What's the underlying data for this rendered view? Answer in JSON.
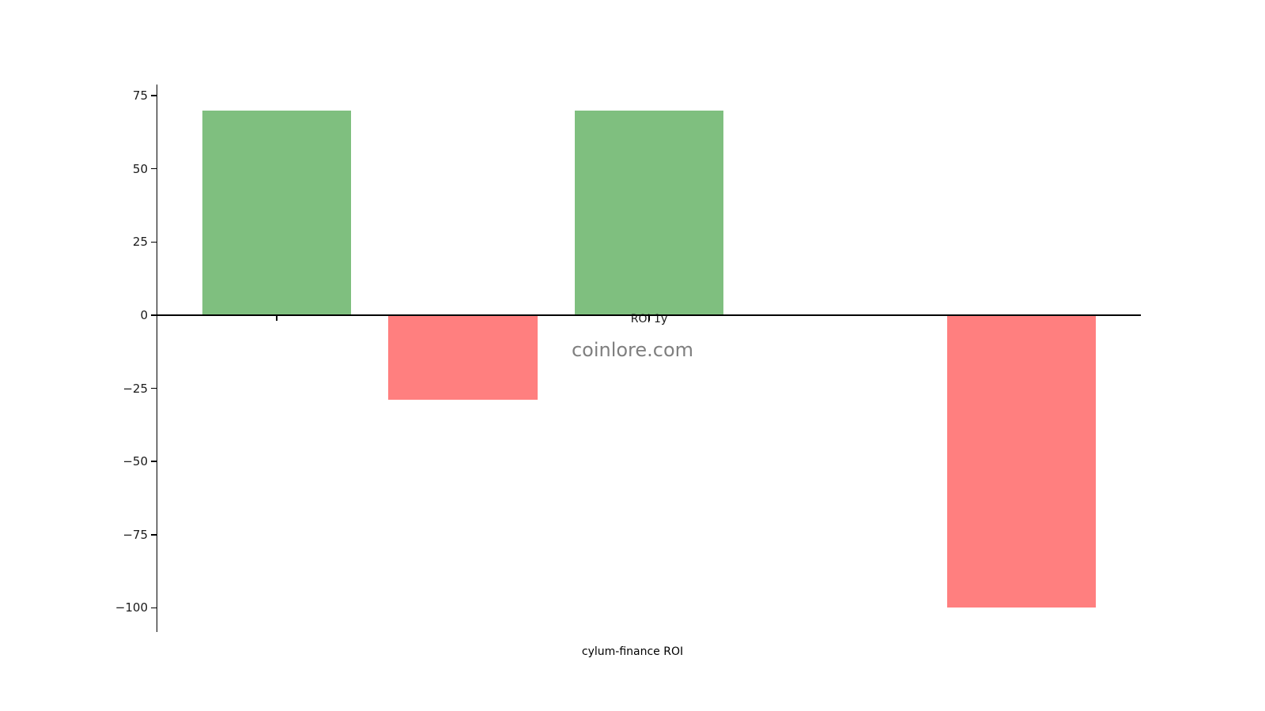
{
  "page": {
    "background": "#ffffff"
  },
  "chart_data": {
    "type": "bar",
    "title": "cylum-finance ROI",
    "watermark": "coinlore.com",
    "bars": [
      {
        "position": 0,
        "value": 70,
        "color": "#7fbf7f"
      },
      {
        "position": 1,
        "value": -29,
        "color": "#ff7f7f"
      },
      {
        "position": 2,
        "value": 70,
        "color": "#7fbf7f"
      },
      {
        "position": 4,
        "value": -100,
        "color": "#ff7f7f"
      }
    ],
    "bar_width": 0.8,
    "x_ticks": [
      {
        "position": 0,
        "label": ""
      },
      {
        "position": 2,
        "label": "ROI 1y"
      }
    ],
    "y_ticks": [
      75,
      50,
      25,
      0,
      -25,
      -50,
      -75,
      -100
    ],
    "xlim": [
      -0.64,
      4.64
    ],
    "ylim": [
      -108,
      78.8
    ],
    "grid": false,
    "legend": false,
    "axis_color": "#000000",
    "tick_label_color": "#1a1a1a",
    "watermark_color": "#7f7f7f",
    "positive_color": "#7fbf7f",
    "negative_color": "#ff7f7f"
  }
}
